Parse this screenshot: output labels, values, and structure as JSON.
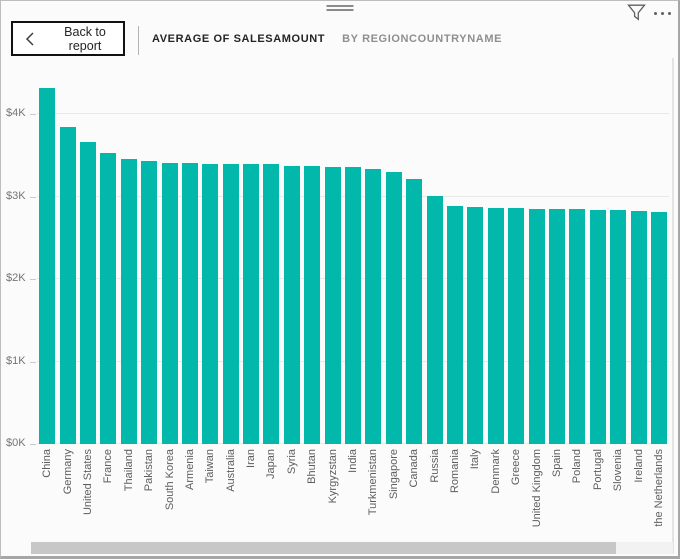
{
  "header": {
    "back_label": "Back to report",
    "title": "AVERAGE OF SALESAMOUNT",
    "subtitle": "BY REGIONCOUNTRYNAME"
  },
  "toolbar": {
    "filter_icon": "funnel-icon",
    "more_icon": "ellipsis-icon",
    "drag_handle_icon": "double-line-drag-handle"
  },
  "colors": {
    "bar": "#01B8AA",
    "title_text": "#252423",
    "subtitle_text": "#8F8F8F",
    "axis_text": "#605E5C",
    "gridline": "#E9E9E9"
  },
  "chart_data": {
    "type": "bar",
    "title": "AVERAGE OF SALESAMOUNT",
    "subtitle": "BY REGIONCOUNTRYNAME",
    "xlabel": "",
    "ylabel": "",
    "value_format": "$K",
    "grid": true,
    "legend": "none",
    "ylim": [
      0,
      4500
    ],
    "y_ticks": [
      "$0K",
      "$1K",
      "$2K",
      "$3K",
      "$4K"
    ],
    "categories": [
      "China",
      "Germany",
      "United States",
      "France",
      "Thailand",
      "Pakistan",
      "South Korea",
      "Armenia",
      "Taiwan",
      "Australia",
      "Iran",
      "Japan",
      "Syria",
      "Bhutan",
      "Kyrgyzstan",
      "India",
      "Turkmenistan",
      "Singapore",
      "Canada",
      "Russia",
      "Romania",
      "Italy",
      "Denmark",
      "Greece",
      "United Kingdom",
      "Spain",
      "Poland",
      "Portugal",
      "Slovenia",
      "Ireland",
      "the Netherlands"
    ],
    "values": [
      4315,
      3840,
      3665,
      3530,
      3455,
      3435,
      3410,
      3405,
      3400,
      3395,
      3395,
      3390,
      3375,
      3365,
      3360,
      3355,
      3335,
      3295,
      3215,
      3005,
      2885,
      2875,
      2865,
      2860,
      2855,
      2850,
      2845,
      2840,
      2835,
      2830,
      2815
    ]
  }
}
